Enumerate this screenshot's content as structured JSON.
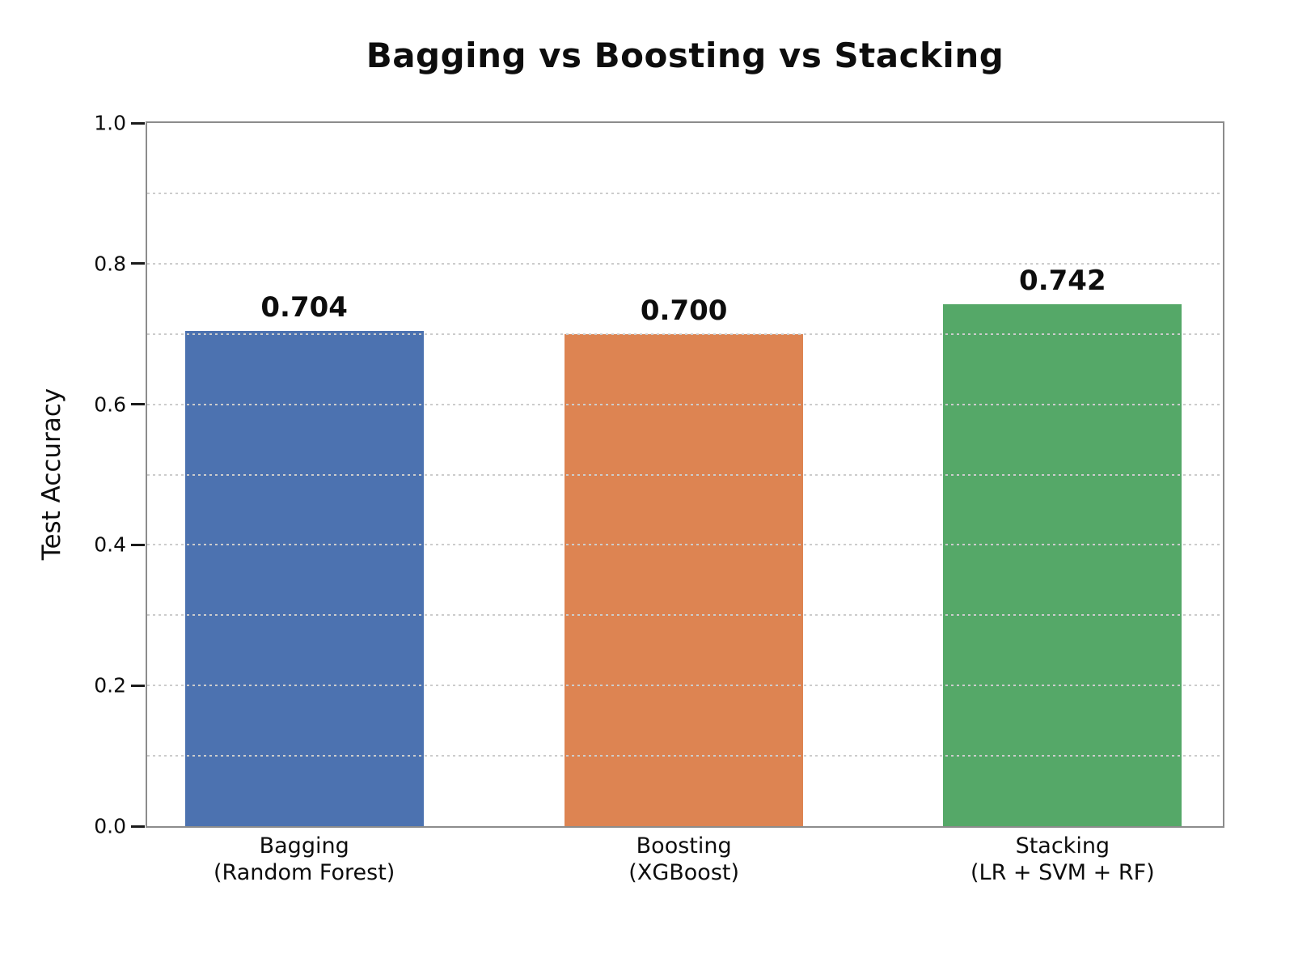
{
  "page": {
    "background": "#ffffff"
  },
  "chart_data": {
    "type": "bar",
    "title": "Bagging vs Boosting vs Stacking",
    "xlabel": "",
    "ylabel": "Test Accuracy",
    "categories": [
      "Bagging (Random Forest)",
      "Boosting (XGBoost)",
      "Stacking (LR + SVM + RF)"
    ],
    "category_lines": [
      [
        "Bagging",
        "(Random Forest)"
      ],
      [
        "Boosting",
        "(XGBoost)"
      ],
      [
        "Stacking",
        "(LR + SVM + RF)"
      ]
    ],
    "values": [
      0.704,
      0.7,
      0.742
    ],
    "value_labels": [
      "0.704",
      "0.700",
      "0.742"
    ],
    "bar_colors": [
      "#4C72B0",
      "#DD8452",
      "#55A868"
    ],
    "ylim": [
      0.0,
      1.0
    ],
    "yticks": [
      {
        "value": 0.0,
        "label": "0.0"
      },
      {
        "value": 0.2,
        "label": "0.2"
      },
      {
        "value": 0.4,
        "label": "0.4"
      },
      {
        "value": 0.6,
        "label": "0.6"
      },
      {
        "value": 0.8,
        "label": "0.8"
      },
      {
        "value": 1.0,
        "label": "1.0"
      }
    ],
    "grid": {
      "axis": "y",
      "step": 0.1,
      "style": "dotted",
      "color": "#cccccc",
      "above_bars": true
    },
    "legend": null,
    "layout": {
      "bar_centers_pct": [
        14.6,
        49.9,
        85.1
      ],
      "bar_width_pct": 22.2,
      "spine_color": "#8c8c8c",
      "tick_color": "#1a1a1a",
      "text_color": "#0d0d0d"
    }
  }
}
